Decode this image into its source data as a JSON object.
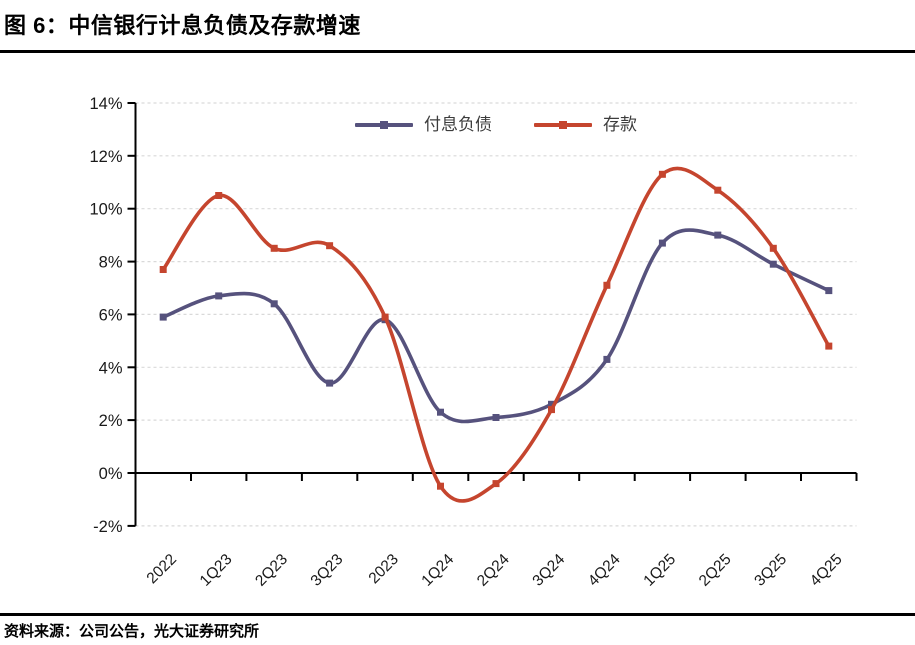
{
  "page": {
    "title": "图 6：中信银行计息负债及存款增速",
    "source_note": "资料来源：公司公告，光大证券研究所"
  },
  "chart_data": {
    "type": "line",
    "title": "中信银行计息负债及存款增速",
    "categories": [
      "2022",
      "1Q23",
      "2Q23",
      "3Q23",
      "2023",
      "1Q24",
      "2Q24",
      "3Q24",
      "4Q24",
      "1Q25",
      "2Q25",
      "3Q25",
      "4Q25"
    ],
    "series": [
      {
        "name": "付息负债",
        "color": "#56527d",
        "marker": "square",
        "values": [
          5.9,
          6.7,
          6.4,
          3.4,
          5.8,
          2.3,
          2.1,
          2.6,
          4.3,
          8.7,
          9.0,
          7.9,
          6.9
        ]
      },
      {
        "name": "存款",
        "color": "#c5452e",
        "marker": "square",
        "values": [
          7.7,
          10.5,
          8.5,
          8.6,
          5.9,
          -0.5,
          -0.4,
          2.4,
          7.1,
          11.3,
          10.7,
          8.5,
          4.8
        ]
      }
    ],
    "xlabel": "",
    "ylabel": "",
    "ylim": [
      -2,
      14
    ],
    "y_ticks": [
      {
        "value": 14,
        "label": "14%"
      },
      {
        "value": 12,
        "label": "12%"
      },
      {
        "value": 10,
        "label": "10%"
      },
      {
        "value": 8,
        "label": "8%"
      },
      {
        "value": 6,
        "label": "6%"
      },
      {
        "value": 4,
        "label": "4%"
      },
      {
        "value": 2,
        "label": "2%"
      },
      {
        "value": 0,
        "label": "0%"
      },
      {
        "value": -2,
        "label": "-2%"
      }
    ],
    "grid": "horizontal-dashed",
    "grid_color": "#d9d9d9",
    "axis_color": "#000000",
    "legend_position": "top-center",
    "smooth": true,
    "x_label_rotation": -45
  }
}
